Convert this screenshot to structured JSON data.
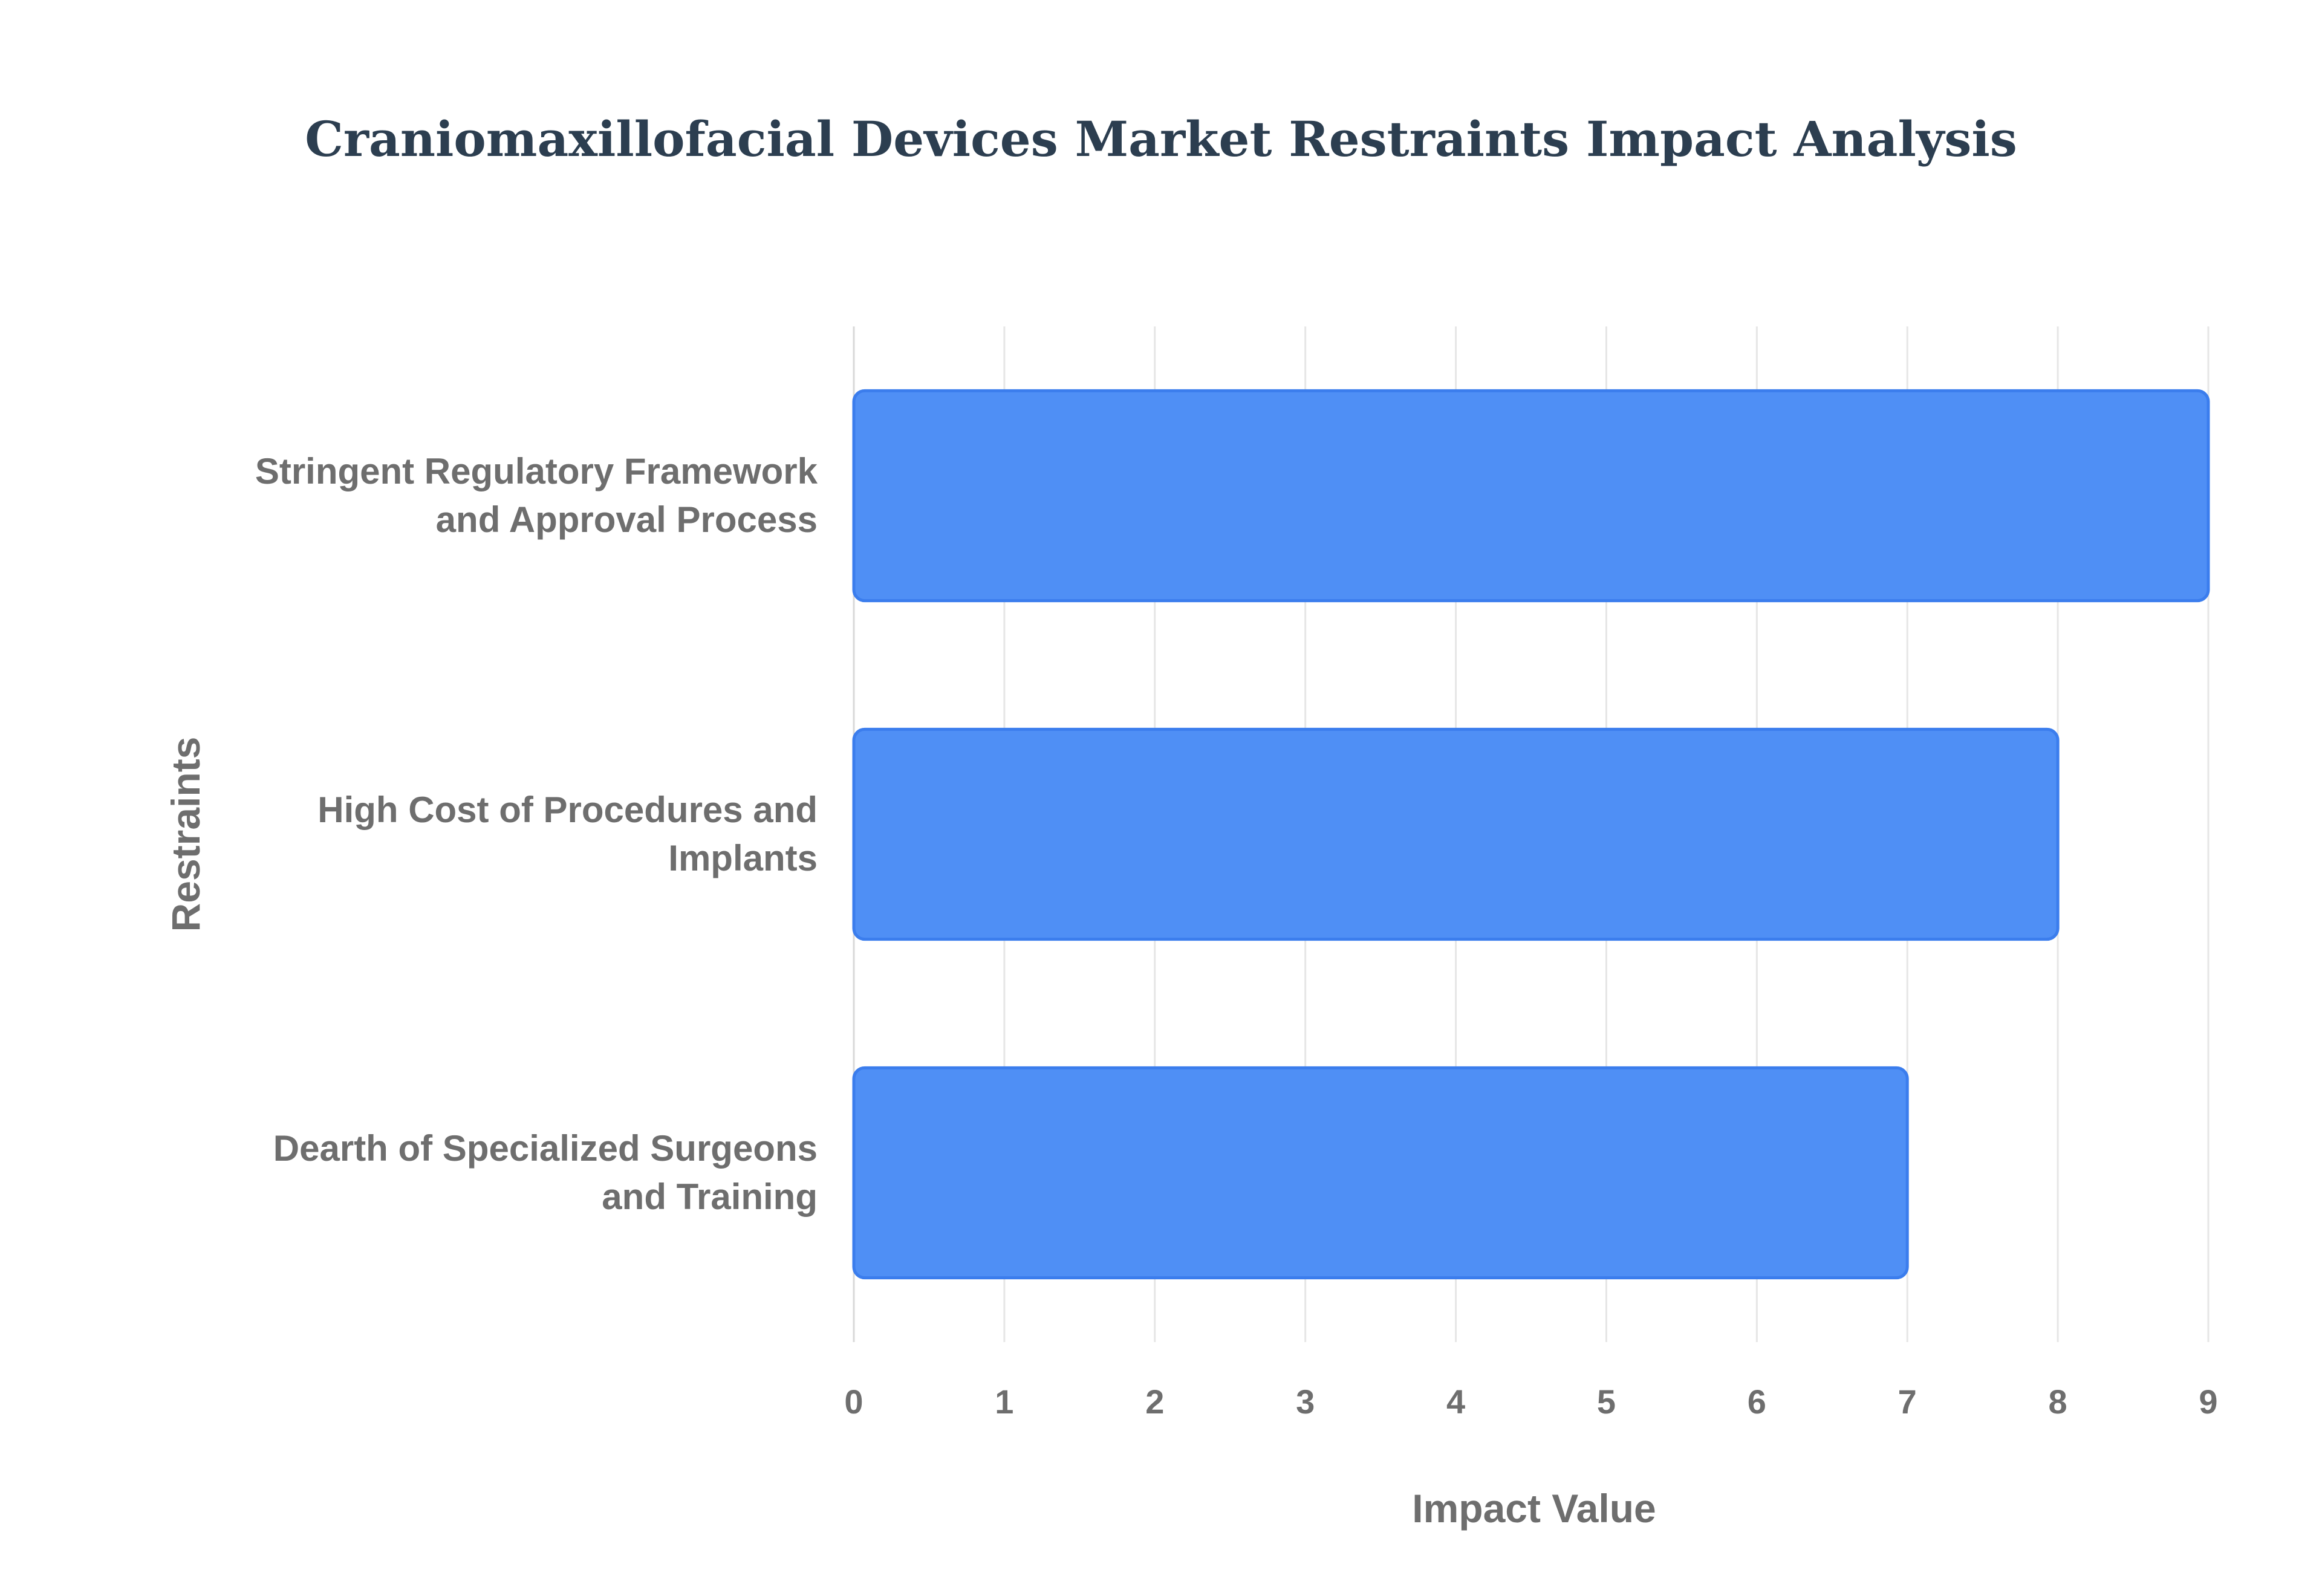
{
  "chart_data": {
    "type": "bar",
    "orientation": "horizontal",
    "title": "Craniomaxillofacial Devices Market Restraints Impact Analysis",
    "xlabel": "Impact Value",
    "ylabel": "Restraints",
    "categories": [
      [
        "Stringent Regulatory Framework",
        "and Approval Process"
      ],
      [
        "High Cost of Procedures and",
        "Implants"
      ],
      [
        "Dearth of Specialized Surgeons",
        "and Training"
      ]
    ],
    "values": [
      9,
      8,
      7
    ],
    "xlim": [
      0,
      9
    ],
    "xticks": [
      "0",
      "1",
      "2",
      "3",
      "4",
      "5",
      "6",
      "7",
      "8",
      "9"
    ],
    "grid": true,
    "legend": "none",
    "colors": {
      "bar_fill": "#4f8ff5",
      "bar_stroke": "#3b7ded",
      "title": "#2c3e50",
      "text": "#6e6e6e",
      "grid": "#e6e6e6"
    }
  }
}
